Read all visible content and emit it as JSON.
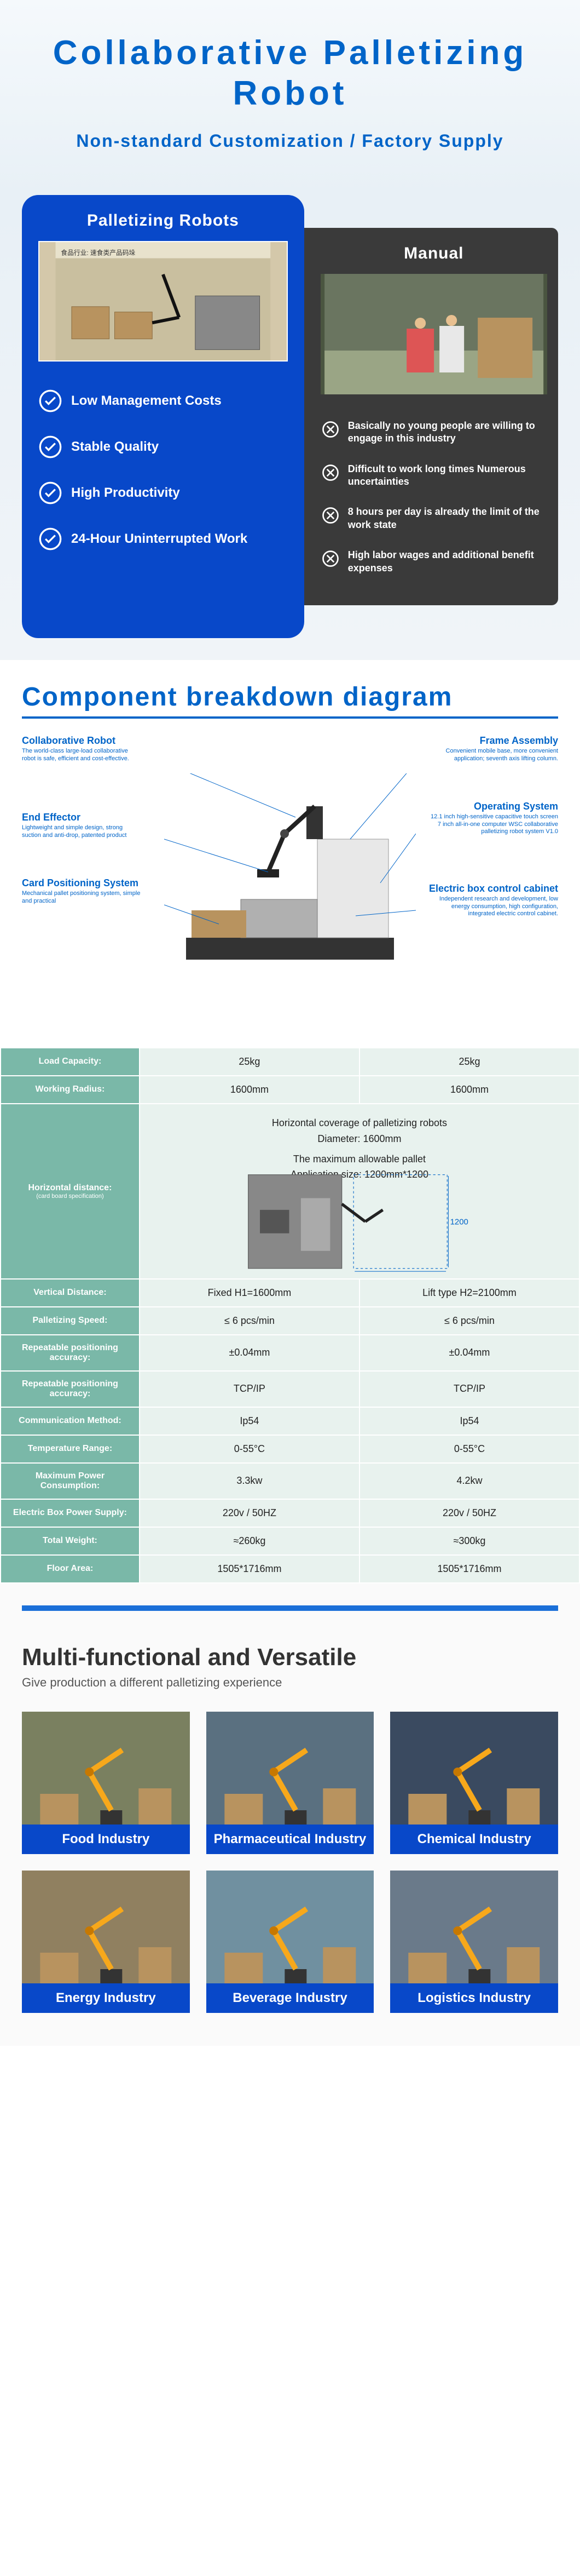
{
  "hero": {
    "title": "Collaborative Palletizing Robot",
    "subtitle": "Non-standard Customization / Factory Supply"
  },
  "compare": {
    "left": {
      "title": "Palletizing Robots",
      "features": [
        "Low Management Costs",
        "Stable Quality",
        "High Productivity",
        "24-Hour Uninterrupted Work"
      ]
    },
    "right": {
      "title": "Manual",
      "features": [
        "Basically no young people are willing to engage in this industry",
        "Difficult to work long times Numerous uncertainties",
        "8 hours per day is already the limit of the work state",
        "High labor wages and additional benefit expenses"
      ]
    }
  },
  "breakdown": {
    "title": "Component breakdown diagram",
    "callouts": {
      "left": [
        {
          "title": "Collaborative Robot",
          "desc": "The world-class large-load collaborative robot is safe, efficient and cost-effective."
        },
        {
          "title": "End Effector",
          "desc": "Lightweight and simple design, strong suction and anti-drop, patented product"
        },
        {
          "title": "Card Positioning System",
          "desc": "Mechanical pallet positioning system, simple and practical"
        }
      ],
      "right": [
        {
          "title": "Frame Assembly",
          "desc": "Convenient mobile base, more convenient application; seventh axis lifting column."
        },
        {
          "title": "Operating System",
          "desc": "12.1 inch high-sensitive capacitive touch screen 7 inch all-in-one computer WSC collaborative palletizing robot system V1.0"
        },
        {
          "title": "Electric box control cabinet",
          "desc": "Independent research and development, low energy consumption, high configuration, integrated electric control cabinet."
        }
      ]
    }
  },
  "specs": {
    "rows": [
      {
        "label": "Load Capacity:",
        "a": "25kg",
        "b": "25kg"
      },
      {
        "label": "Working Radius:",
        "a": "1600mm",
        "b": "1600mm"
      }
    ],
    "hdist": {
      "label": "Horizontal distance:",
      "sublabel": "(card board specification)",
      "text1": "Horizontal coverage of palletizing robots",
      "text2": "Diameter: 1600mm",
      "text3": "The maximum allowable pallet",
      "text4": "Application size: 1200mm*1200",
      "dim1": "1200",
      "dim2": "1200"
    },
    "rows2": [
      {
        "label": "Vertical Distance:",
        "a": "Fixed H1=1600mm",
        "b": "Lift type H2=2100mm"
      },
      {
        "label": "Palletizing Speed:",
        "a": "≤ 6 pcs/min",
        "b": "≤ 6 pcs/min"
      },
      {
        "label": "Repeatable positioning accuracy:",
        "a": "±0.04mm",
        "b": "±0.04mm"
      },
      {
        "label": "Repeatable positioning accuracy:",
        "a": "TCP/IP",
        "b": "TCP/IP"
      },
      {
        "label": "Communication Method:",
        "a": "Ip54",
        "b": "Ip54"
      },
      {
        "label": "Temperature Range:",
        "a": "0-55°C",
        "b": "0-55°C"
      },
      {
        "label": "Maximum Power Consumption:",
        "a": "3.3kw",
        "b": "4.2kw"
      },
      {
        "label": "Electric Box Power Supply:",
        "a": "220v / 50HZ",
        "b": "220v / 50HZ"
      },
      {
        "label": "Total Weight:",
        "a": "≈260kg",
        "b": "≈300kg"
      },
      {
        "label": "Floor Area:",
        "a": "1505*1716mm",
        "b": "1505*1716mm"
      }
    ]
  },
  "mf": {
    "title": "Multi-functional and Versatile",
    "sub": "Give production a different palletizing experience",
    "tiles": [
      "Food Industry",
      "Pharmaceutical Industry",
      "Chemical Industry",
      "Energy Industry",
      "Beverage Industry",
      "Logistics Industry"
    ]
  },
  "colors": {
    "primary": "#0848c9",
    "primary_text": "#0064c8",
    "dark_panel": "#3a3a3a",
    "teal_header": "#7ab8a8",
    "teal_cell": "#e8f2ee"
  }
}
